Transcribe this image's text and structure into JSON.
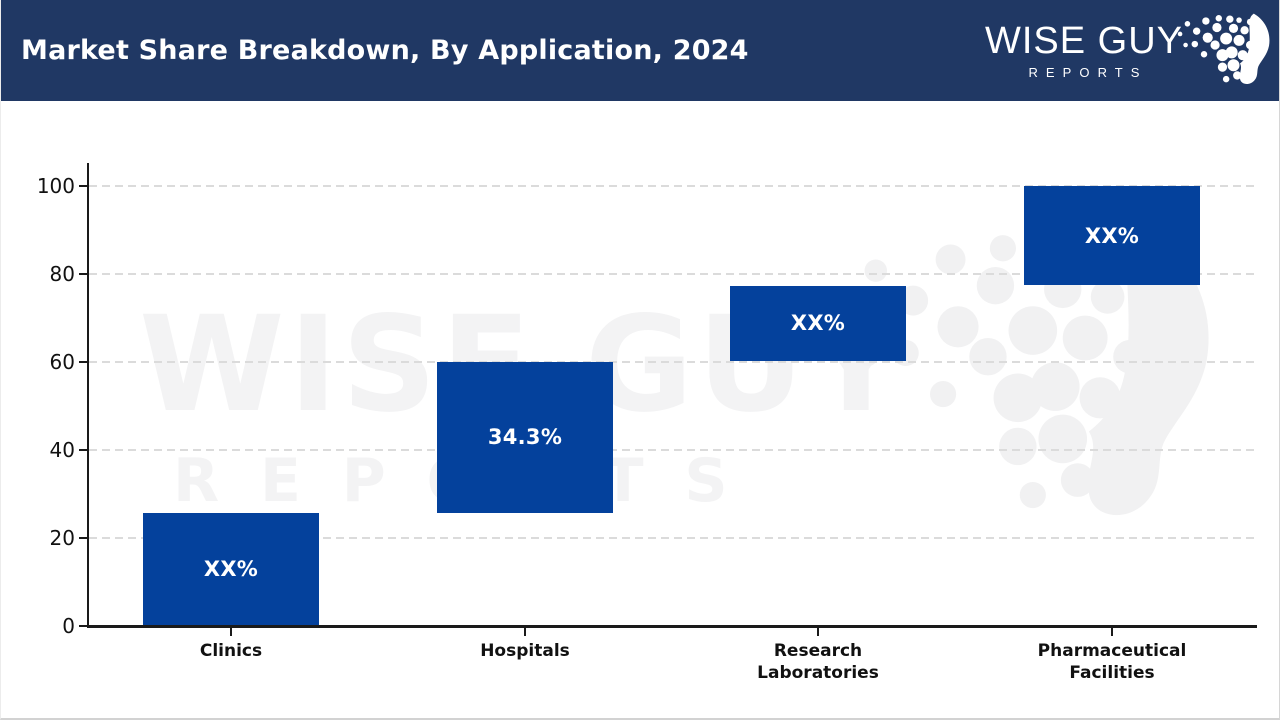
{
  "header": {
    "title": "Market Share Breakdown, By Application, 2024",
    "bg_color": "#203864",
    "text_color": "#ffffff",
    "logo": {
      "name": "WISE GUY",
      "sub": "REPORTS"
    }
  },
  "watermark": {
    "name": "WISE GUY",
    "sub": "REPORTS"
  },
  "chart_data": {
    "type": "bar",
    "subtype": "waterfall",
    "title": "Market Share Breakdown, By Application, 2024",
    "xlabel": "",
    "ylabel": "",
    "ylim": [
      0,
      100
    ],
    "yticks": [
      0,
      20,
      40,
      60,
      80,
      100
    ],
    "grid": true,
    "grid_style": "dashed",
    "legend": "none",
    "bar_color": "#04419c",
    "value_label_color": "#ffffff",
    "axis_color": "#1a1a1a",
    "categories": [
      "Clinics",
      "Hospitals",
      "Research Laboratories",
      "Pharmaceutical Facilities"
    ],
    "segments": [
      {
        "category": "Clinics",
        "category_lines": [
          "Clinics"
        ],
        "start": 0,
        "end": 25.7,
        "value": 25.7,
        "value_label": "XX%"
      },
      {
        "category": "Hospitals",
        "category_lines": [
          "Hospitals"
        ],
        "start": 25.7,
        "end": 60.0,
        "value": 34.3,
        "value_label": "34.3%"
      },
      {
        "category": "Research Laboratories",
        "category_lines": [
          "Research",
          "Laboratories"
        ],
        "start": 60.3,
        "end": 77.2,
        "value": 16.9,
        "value_label": "XX%"
      },
      {
        "category": "Pharmaceutical Facilities",
        "category_lines": [
          "Pharmaceutical",
          "Facilities"
        ],
        "start": 77.4,
        "end": 100,
        "value": 22.6,
        "value_label": "XX%"
      }
    ]
  }
}
